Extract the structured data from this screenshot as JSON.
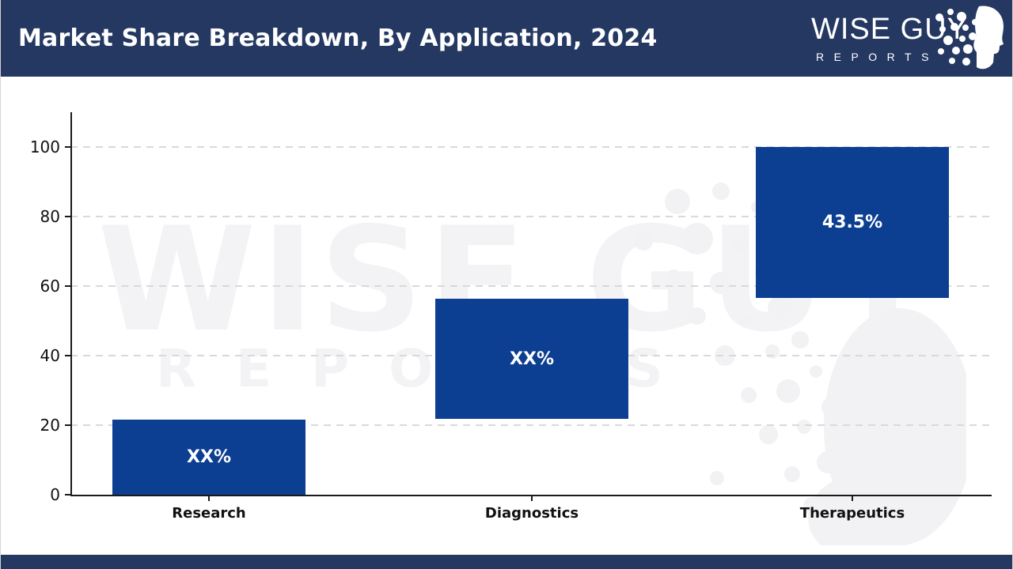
{
  "header": {
    "title": "Market Share Breakdown, By Application, 2024"
  },
  "logo": {
    "line1": "WISE GUY",
    "line2": "REPORTS"
  },
  "watermark": {
    "line1": "WISE GUY",
    "line2": "REPORTS"
  },
  "chart_data": {
    "type": "bar",
    "variant": "waterfall-floating-bars",
    "title": "Market Share Breakdown, By Application, 2024",
    "categories": [
      "Research",
      "Diagnostics",
      "Therapeutics"
    ],
    "bars": [
      {
        "category": "Research",
        "start": 0,
        "end": 21.6,
        "value_label": "XX%"
      },
      {
        "category": "Diagnostics",
        "start": 21.8,
        "end": 56.3,
        "value_label": "XX%"
      },
      {
        "category": "Therapeutics",
        "start": 56.5,
        "end": 100,
        "value_label": "43.5%"
      }
    ],
    "yticks": [
      0,
      20,
      40,
      60,
      80,
      100
    ],
    "ylim": [
      0,
      105
    ],
    "xlabel": "",
    "ylabel": "",
    "grid": "horizontal-dashed",
    "legend": "none"
  },
  "colors": {
    "header_bg": "#243862",
    "footer_bg": "#243862",
    "bar": "#0c3e91",
    "watermark": "#f3f3f5",
    "grid": "#d9d9d9",
    "axis": "#1a1a1a",
    "bar_label_text": "#ffffff"
  }
}
